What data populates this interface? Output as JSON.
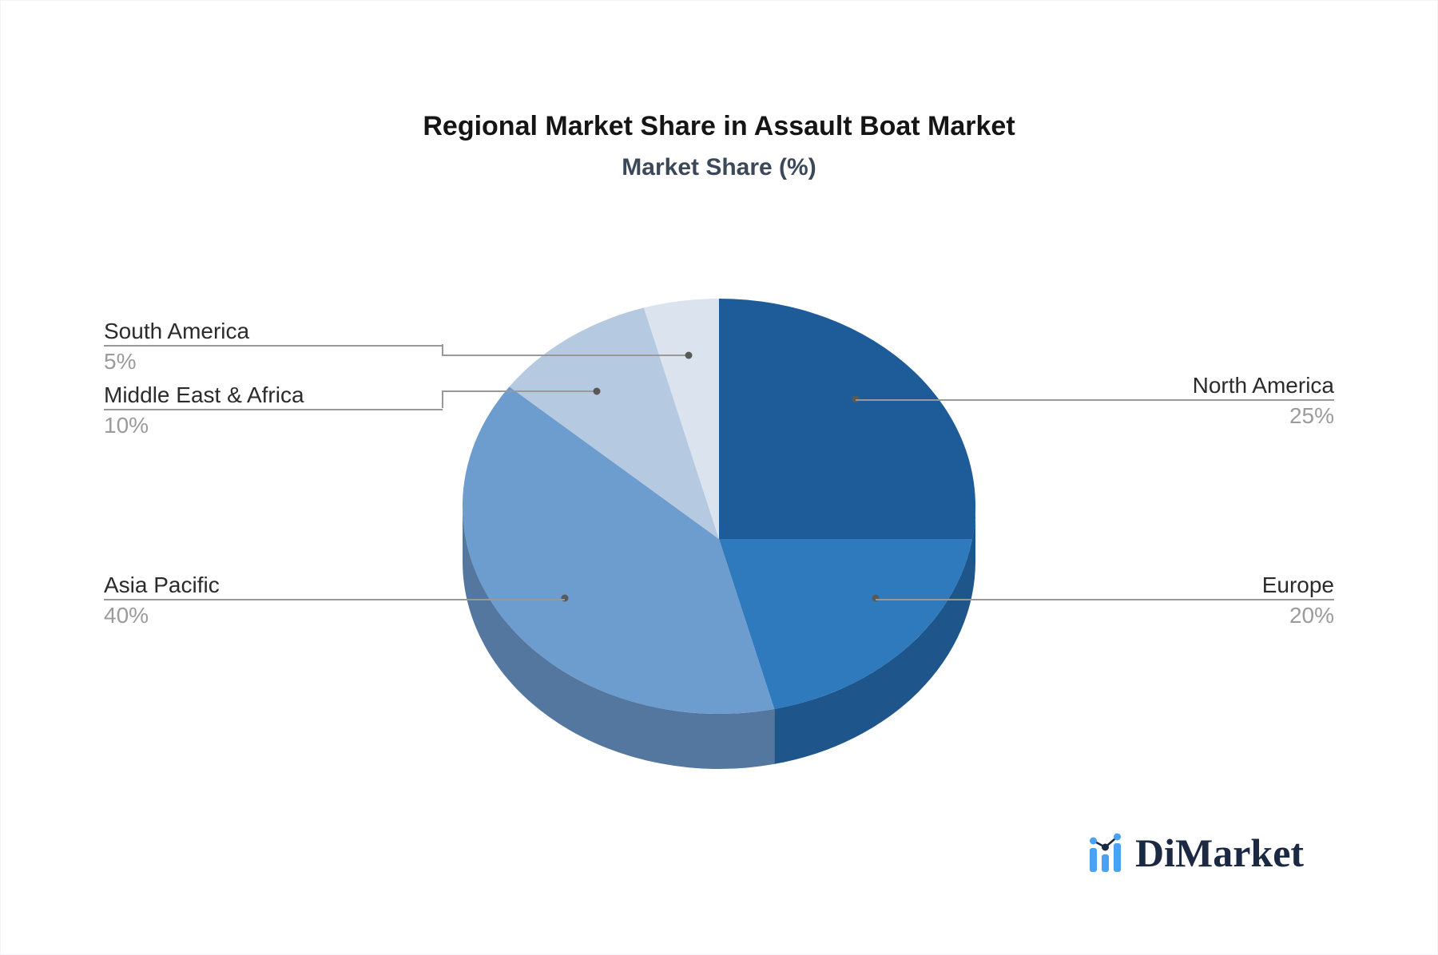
{
  "chart_data": {
    "type": "pie",
    "title": "Regional Market Share in Assault Boat Market",
    "subtitle": "Market Share (%)",
    "unit": "%",
    "start_angle": "top",
    "direction": "clockwise",
    "legend": false,
    "grid": false,
    "series": [
      {
        "name": "North America",
        "value": 25,
        "label": "25%",
        "color": "#1d5c98"
      },
      {
        "name": "Europe",
        "value": 20,
        "label": "20%",
        "color": "#2e7abc"
      },
      {
        "name": "Asia Pacific",
        "value": 40,
        "label": "40%",
        "color": "#6d9ccf"
      },
      {
        "name": "Middle East & Africa",
        "value": 10,
        "label": "10%",
        "color": "#b5c9e0"
      },
      {
        "name": "South America",
        "value": 5,
        "label": "5%",
        "color": "#dbe3ee"
      }
    ],
    "side_shading": {
      "europe_side": "#1e568c",
      "asia_pacific_side": "#54779f"
    },
    "leader": {
      "line_color": "#999999",
      "dot_color": "#595959"
    }
  },
  "branding": {
    "logo_text": "DiMarket",
    "logo_icon": "bar-line-chart-icon",
    "logo_text_color": "#1b2942",
    "logo_accent_color": "#4aa2f5"
  }
}
